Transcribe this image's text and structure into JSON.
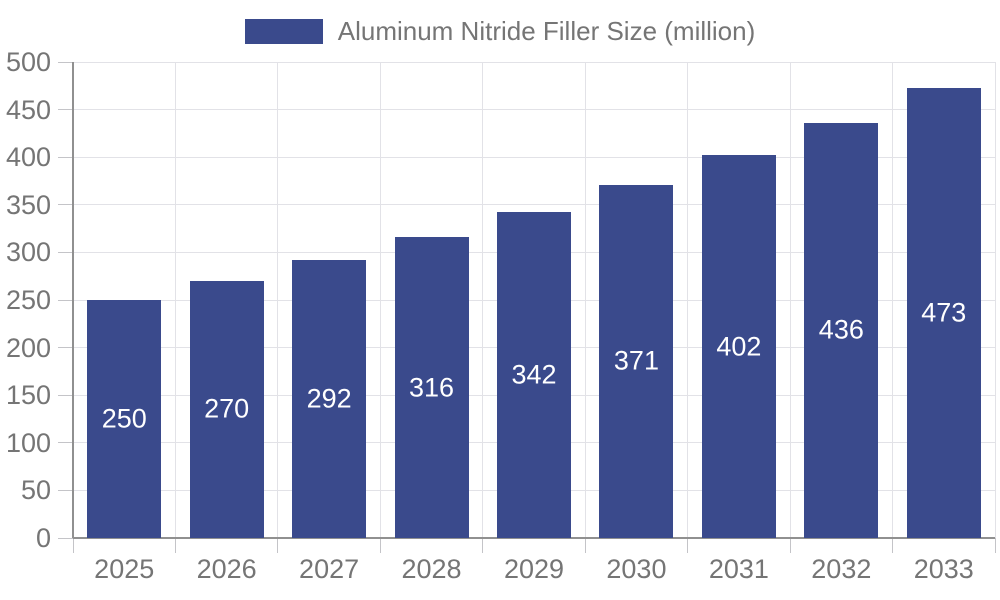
{
  "chart_data": {
    "type": "bar",
    "title": "",
    "categories": [
      "2025",
      "2026",
      "2027",
      "2028",
      "2029",
      "2030",
      "2031",
      "2032",
      "2033"
    ],
    "series": [
      {
        "name": "Aluminum Nitride Filler Size (million)",
        "values": [
          250,
          270,
          292,
          316,
          342,
          371,
          402,
          436,
          473
        ]
      }
    ],
    "value_labels_shown": true,
    "xlabel": "",
    "ylabel": "",
    "ylim": [
      0,
      500
    ],
    "yticks": [
      0,
      50,
      100,
      150,
      200,
      250,
      300,
      350,
      400,
      450,
      500
    ],
    "grid": true,
    "legend_position": "top-center",
    "colors": {
      "bar": "#3A4A8C",
      "value_label": "#ffffff",
      "axis_text": "#757575",
      "grid_line": "#e2e2e7",
      "axis_line": "#909090",
      "tick_line": "#c4c4c8",
      "background": "#ffffff"
    }
  }
}
